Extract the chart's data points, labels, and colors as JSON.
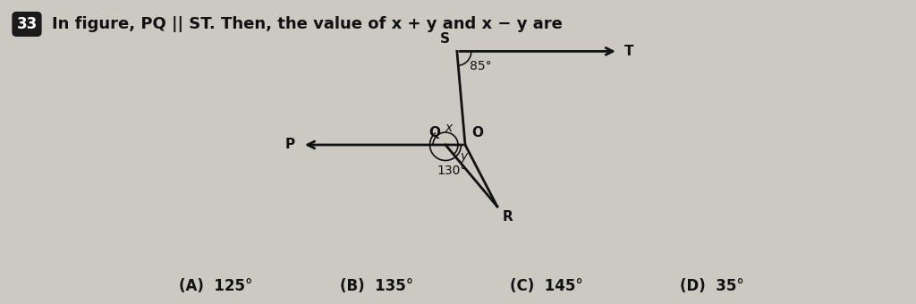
{
  "bg_color": "#ccc8c2",
  "text_color": "#111111",
  "question_number": "33",
  "question_text": "In figure, PQ || ST. Then, the value of x + y and x − y are",
  "options": [
    "(A)  125°",
    "(B)  135°",
    "(C)  145°",
    "(D)  35°"
  ],
  "line_color": "#111111",
  "angle_85": "85°",
  "angle_130": "130°",
  "label_x": "x",
  "label_y": "y",
  "label_S": "S",
  "label_T": "T",
  "label_P": "P",
  "label_Q": "Q",
  "label_O": "O",
  "label_R": "R"
}
